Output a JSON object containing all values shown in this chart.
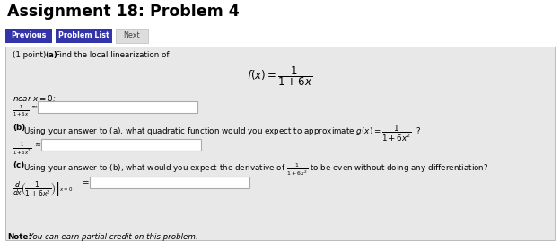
{
  "title": "Assignment 18: Problem 4",
  "bg_color": "#ffffff",
  "panel_bg": "#e8e8e8",
  "btn_previous_color": "#3333aa",
  "btn_problemlist_color": "#3333aa",
  "btn_next_color": "#dddddd",
  "btn_previous_text": "Previous",
  "btn_problemlist_text": "Problem List",
  "btn_next_text": "Next",
  "input_box_color": "#ffffff",
  "input_box_border": "#aaaaaa",
  "note_bold": "Note:",
  "note_italic": " You can earn partial credit on this problem."
}
